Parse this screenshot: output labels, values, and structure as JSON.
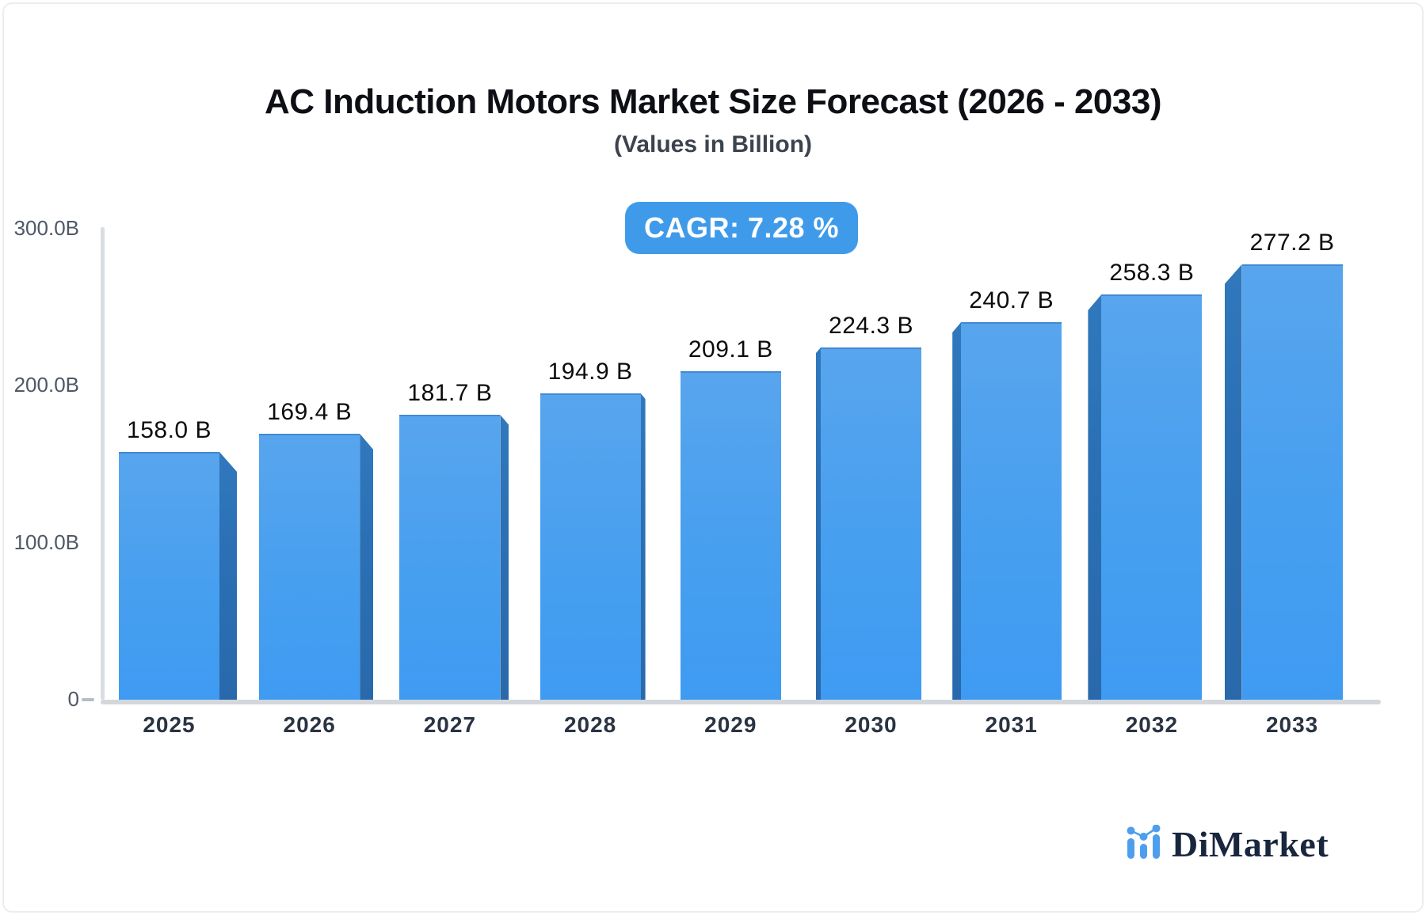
{
  "header": {
    "title": "AC Induction Motors Market Size Forecast (2026 - 2033)",
    "subtitle": "(Values in Billion)"
  },
  "badge": {
    "label": "CAGR: 7.28 %"
  },
  "logo": {
    "text": "DiMarket",
    "icon": "chart-bars-icon"
  },
  "colors": {
    "accent": "#3f9bea",
    "bar_front_top": "#58a5ee",
    "bar_front_bottom": "#3f9bf2",
    "bar_side": "#2b70b5",
    "axis_line": "#d6d9de",
    "value_text": "#0b0c0e",
    "year_text": "#2a3342",
    "tick_text": "#4f5866",
    "logo_text": "#18263e",
    "logo_icon": "#4d9fed"
  },
  "chart_data": {
    "type": "bar",
    "title": "AC Induction Motors Market Size Forecast (2026 - 2033)",
    "subtitle": "(Values in Billion)",
    "cagr_label": "CAGR: 7.28 %",
    "categories": [
      "2025",
      "2026",
      "2027",
      "2028",
      "2029",
      "2030",
      "2031",
      "2032",
      "2033"
    ],
    "values": [
      158.0,
      169.4,
      181.7,
      194.9,
      209.1,
      224.3,
      240.7,
      258.3,
      277.2
    ],
    "value_labels": [
      "158.0 B",
      "169.4 B",
      "181.7 B",
      "194.9 B",
      "209.1 B",
      "224.3 B",
      "240.7 B",
      "258.3 B",
      "277.2 B"
    ],
    "xlabel": "",
    "ylabel": "",
    "ylim": [
      0,
      300
    ],
    "y_ticks": [
      {
        "label": "300.0B",
        "value": 300
      },
      {
        "label": "200.0B",
        "value": 200
      },
      {
        "label": "100.0B",
        "value": 100
      },
      {
        "label": "0",
        "value": 0
      }
    ],
    "grid": false,
    "legend": false,
    "style": "3d-perspective-bars-vanishing-at-center"
  }
}
